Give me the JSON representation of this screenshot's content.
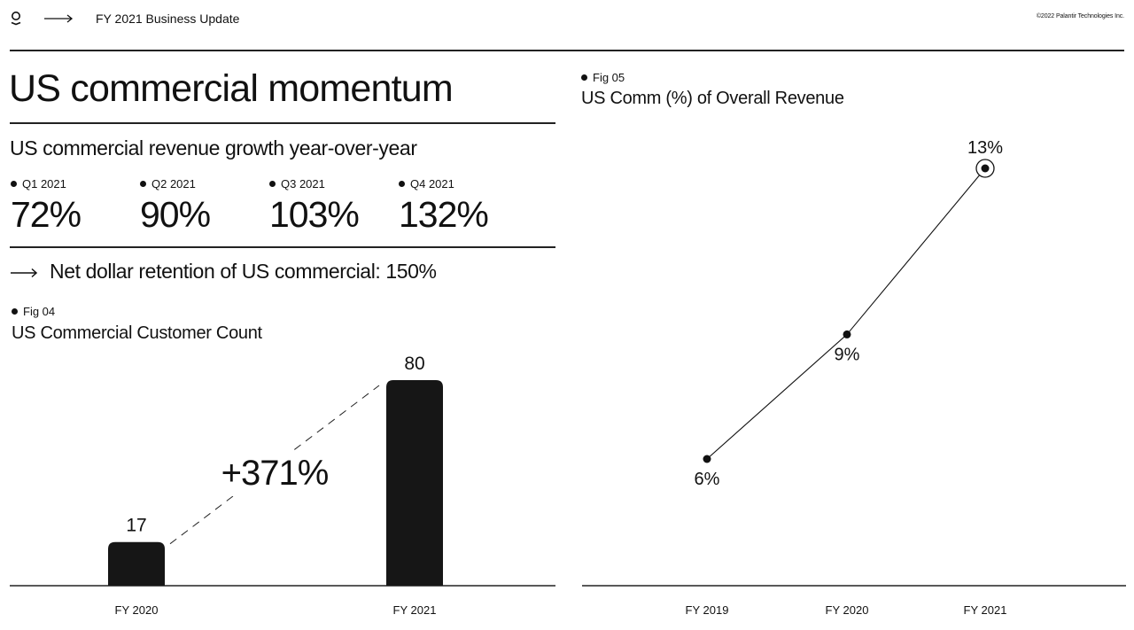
{
  "header": {
    "title": "FY 2021 Business Update",
    "copyright": "©2022 Palantir Technologies Inc.",
    "logo_icon": "palantir-logo-icon",
    "arrow_icon": "arrow-right-icon"
  },
  "page_title": "US commercial momentum",
  "growth": {
    "subtitle": "US commercial revenue growth year-over-year",
    "quarters": [
      {
        "label": "Q1 2021",
        "value": "72%"
      },
      {
        "label": "Q2 2021",
        "value": "90%"
      },
      {
        "label": "Q3 2021",
        "value": "103%"
      },
      {
        "label": "Q4 2021",
        "value": "132%"
      }
    ]
  },
  "ndr": {
    "text": "Net dollar retention of US commercial: 150%",
    "icon": "arrow-right-icon"
  },
  "colors": {
    "ink": "#111111",
    "rule": "#222222",
    "background": "#ffffff"
  },
  "chart_data": [
    {
      "type": "bar",
      "fig_label": "Fig 04",
      "title": "US Commercial Customer Count",
      "categories": [
        "FY 2020",
        "FY 2021"
      ],
      "values": [
        17,
        80
      ],
      "data_labels": [
        "17",
        "80"
      ],
      "annotation": "+371%",
      "ylim": [
        0,
        80
      ],
      "grid": false,
      "legend": "none"
    },
    {
      "type": "line",
      "fig_label": "Fig 05",
      "title": "US Comm (%) of Overall Revenue",
      "x": [
        "FY 2019",
        "FY 2020",
        "FY 2021"
      ],
      "values": [
        6,
        9,
        13
      ],
      "data_labels": [
        "6%",
        "9%",
        "13%"
      ],
      "highlight_last": true,
      "ylim": [
        0,
        13
      ],
      "grid": false,
      "legend": "none"
    }
  ]
}
